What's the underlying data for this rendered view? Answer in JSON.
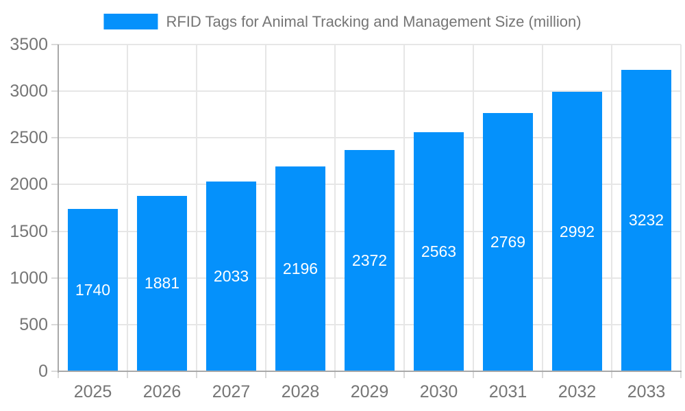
{
  "chart_data": {
    "type": "bar",
    "title": "",
    "legend_position": "top",
    "categories": [
      "2025",
      "2026",
      "2027",
      "2028",
      "2029",
      "2030",
      "2031",
      "2032",
      "2033"
    ],
    "series": [
      {
        "name": "RFID Tags for Animal Tracking and Management Size (million)",
        "values": [
          1740,
          1881,
          2033,
          2196,
          2372,
          2563,
          2769,
          2992,
          3232
        ]
      }
    ],
    "xlabel": "",
    "ylabel": "",
    "ylim": [
      0,
      3500
    ],
    "yticks": [
      0,
      500,
      1000,
      1500,
      2000,
      2500,
      3000,
      3500
    ],
    "grid": true,
    "bar_value_labels_shown": true,
    "colors": {
      "bar": "#0591fb",
      "bar_label": "#ffffff",
      "axis_text": "#757575",
      "axis_line": "#a8a8a8",
      "gridline": "#e6e6e6",
      "tick": "#d9d9d9",
      "background": "#ffffff"
    }
  }
}
